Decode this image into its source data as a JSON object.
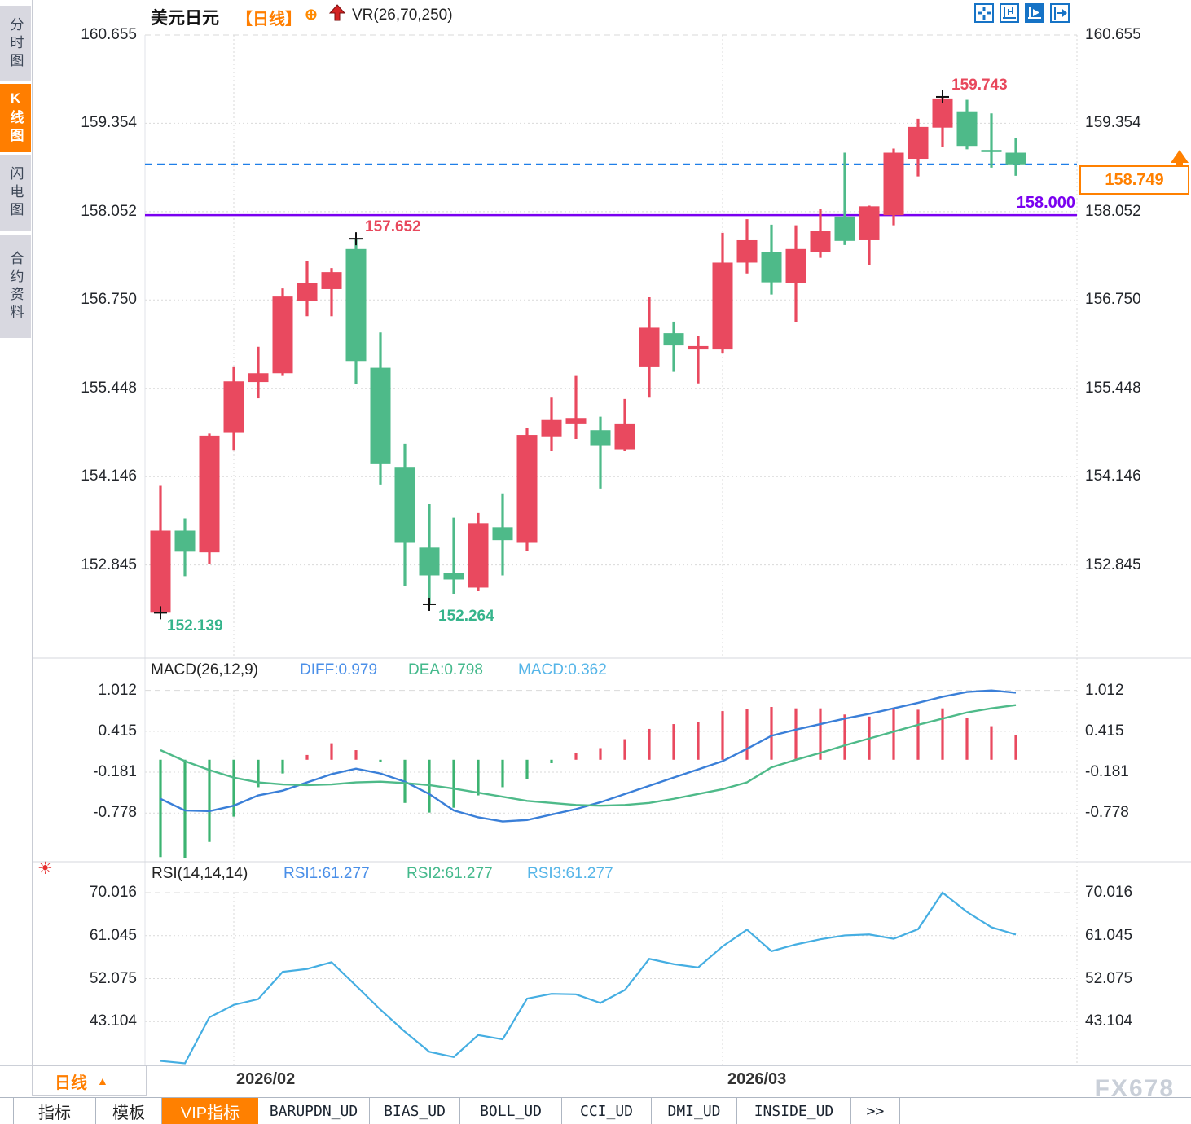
{
  "sidebar": {
    "tabs": [
      {
        "label": "分时图",
        "active": false
      },
      {
        "label": "K线图",
        "active": true
      },
      {
        "label": "闪电图",
        "active": false
      },
      {
        "label": "合约资料",
        "active": false
      }
    ]
  },
  "header": {
    "symbol": "美元日元",
    "timeframe_tag": "【日线】",
    "circle_plus_icon": "⊕",
    "indicator": "VR(26,70,250)",
    "toolbar_icons": [
      "crosshair-move-icon",
      "axis-fit-icon",
      "axis-play-icon",
      "pan-right-icon"
    ]
  },
  "price_axis": {
    "ticks": [
      "160.655",
      "159.354",
      "158.052",
      "156.750",
      "155.448",
      "154.146",
      "152.845"
    ]
  },
  "macd_panel": {
    "name": "MACD(26,12,9)",
    "diff_label": "DIFF:0.979",
    "dea_label": "DEA:0.798",
    "macd_label": "MACD:0.362",
    "ticks": [
      "1.012",
      "0.415",
      "-0.181",
      "-0.778"
    ]
  },
  "rsi_panel": {
    "name": "RSI(14,14,14)",
    "rsi1_label": "RSI1:61.277",
    "rsi2_label": "RSI2:61.277",
    "rsi3_label": "RSI3:61.277",
    "ticks": [
      "70.016",
      "61.045",
      "52.075",
      "43.104"
    ]
  },
  "annotations": {
    "high1": "157.652",
    "high2": "159.743",
    "low1": "152.139",
    "low2": "152.264",
    "current_price": "158.749",
    "purple_level": "158.000"
  },
  "xaxis": {
    "date_labels": [
      "2026/02",
      "2026/03"
    ],
    "period_label": "日线",
    "period_arrow": "▲"
  },
  "bottom_tabs": [
    {
      "label": "指标",
      "active": false
    },
    {
      "label": "模板",
      "active": false
    },
    {
      "label": "VIP指标",
      "active": true
    },
    {
      "label": "BARUPDN_UD",
      "active": false
    },
    {
      "label": "BIAS_UD",
      "active": false
    },
    {
      "label": "BOLL_UD",
      "active": false
    },
    {
      "label": "CCI_UD",
      "active": false
    },
    {
      "label": "DMI_UD",
      "active": false
    },
    {
      "label": "INSIDE_UD",
      "active": false
    },
    {
      "label": ">>",
      "active": false
    }
  ],
  "watermark": "FX678",
  "chart_data": {
    "type": "candlestick+indicators",
    "title": "美元日元 日线",
    "x_month_labels": [
      "2026/02",
      "2026/03"
    ],
    "price_ticks": [
      160.655,
      159.354,
      158.052,
      156.75,
      155.448,
      154.146,
      152.845
    ],
    "up_color": "#e9495f",
    "down_color": "#4eba89",
    "candles_ohlc": [
      [
        152.14,
        154.01,
        152.139,
        153.35
      ],
      [
        153.35,
        153.53,
        152.68,
        153.04
      ],
      [
        153.03,
        154.78,
        152.86,
        154.75
      ],
      [
        154.79,
        155.77,
        154.53,
        155.55
      ],
      [
        155.54,
        156.06,
        155.3,
        155.67
      ],
      [
        155.67,
        156.92,
        155.63,
        156.8
      ],
      [
        156.73,
        157.33,
        156.51,
        157.0
      ],
      [
        156.91,
        157.22,
        156.51,
        157.16
      ],
      [
        157.5,
        157.652,
        155.51,
        155.85
      ],
      [
        155.75,
        156.27,
        154.03,
        154.33
      ],
      [
        154.29,
        154.63,
        152.53,
        153.17
      ],
      [
        153.1,
        153.74,
        152.264,
        152.69
      ],
      [
        152.72,
        153.54,
        152.42,
        152.63
      ],
      [
        152.51,
        153.61,
        152.46,
        153.46
      ],
      [
        153.4,
        153.9,
        152.69,
        153.21
      ],
      [
        153.17,
        154.86,
        153.05,
        154.76
      ],
      [
        154.74,
        155.31,
        154.52,
        154.98
      ],
      [
        154.93,
        155.63,
        154.7,
        155.01
      ],
      [
        154.83,
        155.03,
        153.97,
        154.61
      ],
      [
        154.55,
        155.29,
        154.52,
        154.93
      ],
      [
        155.77,
        156.79,
        155.31,
        156.34
      ],
      [
        156.26,
        156.43,
        155.69,
        156.08
      ],
      [
        156.02,
        156.22,
        155.52,
        156.07
      ],
      [
        156.02,
        157.74,
        155.96,
        157.3
      ],
      [
        157.3,
        157.94,
        157.14,
        157.63
      ],
      [
        157.46,
        157.86,
        156.83,
        157.01
      ],
      [
        157.0,
        157.85,
        156.43,
        157.5
      ],
      [
        157.45,
        158.09,
        157.37,
        157.77
      ],
      [
        157.98,
        158.92,
        157.56,
        157.62
      ],
      [
        157.63,
        158.14,
        157.27,
        158.13
      ],
      [
        158.0,
        158.98,
        157.85,
        158.92
      ],
      [
        158.83,
        159.42,
        158.57,
        159.3
      ],
      [
        159.29,
        159.743,
        159.01,
        159.72
      ],
      [
        159.53,
        159.7,
        158.97,
        159.02
      ],
      [
        158.96,
        159.5,
        158.7,
        158.94
      ],
      [
        158.92,
        159.14,
        158.58,
        158.749
      ]
    ],
    "point_annotations": [
      {
        "kind": "high",
        "index": 8,
        "value": 157.652
      },
      {
        "kind": "high",
        "index": 32,
        "value": 159.743
      },
      {
        "kind": "low",
        "index": 0,
        "value": 152.139
      },
      {
        "kind": "low",
        "index": 11,
        "value": 152.264
      }
    ],
    "levels": {
      "current_price": 158.749,
      "purple_line": 158.0
    },
    "macd": {
      "params": [
        26,
        12,
        9
      ],
      "ticks": [
        1.012,
        0.415,
        -0.181,
        -0.778
      ],
      "last": {
        "diff": 0.979,
        "dea": 0.798,
        "macd": 0.362
      },
      "diff": [
        -0.57,
        -0.74,
        -0.75,
        -0.67,
        -0.52,
        -0.45,
        -0.33,
        -0.21,
        -0.13,
        -0.2,
        -0.32,
        -0.5,
        -0.74,
        -0.84,
        -0.9,
        -0.88,
        -0.8,
        -0.72,
        -0.62,
        -0.5,
        -0.38,
        -0.26,
        -0.14,
        -0.02,
        0.16,
        0.35,
        0.44,
        0.52,
        0.6,
        0.67,
        0.75,
        0.83,
        0.92,
        0.99,
        1.012,
        0.979
      ],
      "dea": [
        0.14,
        -0.02,
        -0.15,
        -0.26,
        -0.33,
        -0.36,
        -0.37,
        -0.36,
        -0.33,
        -0.32,
        -0.34,
        -0.37,
        -0.42,
        -0.48,
        -0.54,
        -0.6,
        -0.63,
        -0.66,
        -0.67,
        -0.66,
        -0.63,
        -0.57,
        -0.5,
        -0.43,
        -0.33,
        -0.11,
        0.0,
        0.1,
        0.21,
        0.31,
        0.41,
        0.51,
        0.6,
        0.69,
        0.75,
        0.798
      ],
      "hist": [
        -1.42,
        -1.44,
        -1.2,
        -0.83,
        -0.4,
        -0.2,
        0.07,
        0.24,
        0.14,
        -0.03,
        -0.63,
        -0.77,
        -0.7,
        -0.52,
        -0.4,
        -0.28,
        -0.05,
        0.1,
        0.17,
        0.3,
        0.45,
        0.52,
        0.55,
        0.71,
        0.74,
        0.77,
        0.75,
        0.75,
        0.66,
        0.63,
        0.75,
        0.73,
        0.75,
        0.61,
        0.49,
        0.362
      ]
    },
    "rsi": {
      "params": [
        14,
        14,
        14
      ],
      "ticks": [
        70.016,
        61.045,
        52.075,
        43.104
      ],
      "last": 61.277,
      "values": [
        34.9,
        34.4,
        44.0,
        46.6,
        47.8,
        53.5,
        54.1,
        55.5,
        50.6,
        45.6,
        41.0,
        36.8,
        35.7,
        40.3,
        39.4,
        47.9,
        48.9,
        48.8,
        47.0,
        49.7,
        56.2,
        55.1,
        54.4,
        58.8,
        62.3,
        57.8,
        59.2,
        60.3,
        61.1,
        61.3,
        60.4,
        62.4,
        70.016,
        66.0,
        62.8,
        61.277
      ]
    },
    "colors": {
      "diff_line": "#3a7fd8",
      "dea_line": "#4eba89",
      "rsi_line": "#45aee2",
      "current_price_line": "#1f7fe8",
      "purple_line": "#7a00f0",
      "accent_orange": "#ff8000"
    }
  }
}
